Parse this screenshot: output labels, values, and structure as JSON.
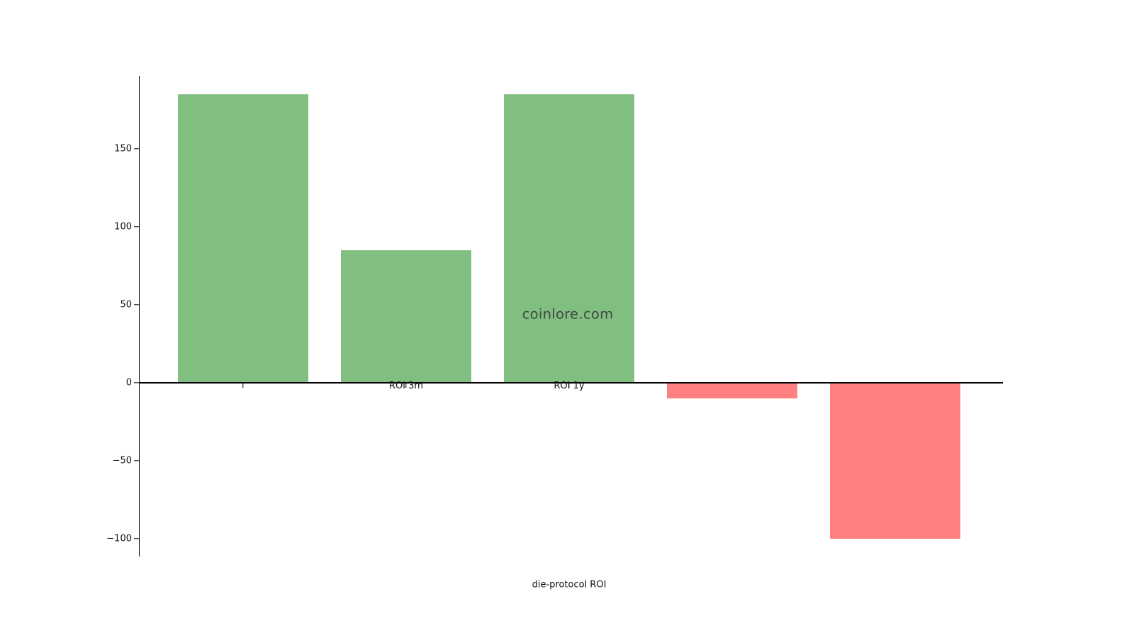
{
  "page": {
    "background_color": "#ffffff"
  },
  "chart_data": {
    "type": "bar",
    "title": "die-protocol ROI",
    "watermark": "coinlore.com",
    "categories": [
      "",
      "ROI 3m",
      "ROI 1y",
      "",
      ""
    ],
    "values": [
      185,
      85,
      185,
      -10,
      -100
    ],
    "series_colors": [
      "#80bf80",
      "#80bf80",
      "#80bf80",
      "#ff8080",
      "#ff8080"
    ],
    "positive_color": "#80bf80",
    "negative_color": "#ff8080",
    "yticks": [
      150,
      100,
      50,
      0,
      -50,
      -100
    ],
    "xticks": [
      {
        "index": 0,
        "label": ""
      },
      {
        "index": 1,
        "label": "ROI 3m"
      },
      {
        "index": 2,
        "label": "ROI 1y"
      }
    ],
    "ylim": [
      -111,
      197
    ],
    "grid": false,
    "legend": false,
    "axis_color": "#000000",
    "tick_label_color": "#151515",
    "watermark_color": "#3c3c3c"
  }
}
